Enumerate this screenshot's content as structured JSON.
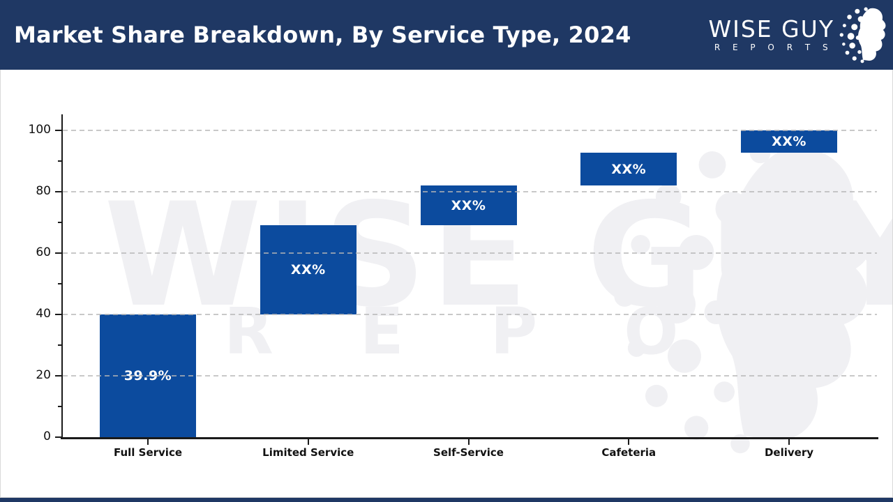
{
  "header": {
    "title": "Market Share Breakdown, By Service Type, 2024",
    "logo": {
      "line1": "WISE GUY",
      "line2": "R E P O R T S"
    }
  },
  "watermark": {
    "line1": "WISE GUY",
    "line2": "R E P O R T S"
  },
  "footer": {
    "note": ""
  },
  "colors": {
    "header_bg": "#1f3864",
    "footer_bg": "#1f3864",
    "bar": "#0c4b9e",
    "bar_label": "#ffffff",
    "gridline": "#d9d9d9",
    "axis": "#1a1a1a",
    "watermark": "#f0f0f3"
  },
  "chart_data": {
    "type": "bar",
    "subtype": "waterfall",
    "title": "Market Share Breakdown, By Service Type, 2024",
    "categories": [
      "Full Service",
      "Limited Service",
      "Self-Service",
      "Cafeteria",
      "Delivery"
    ],
    "segments": [
      {
        "label": "Full Service",
        "start": 0,
        "end": 39.9,
        "value_label": "39.9%"
      },
      {
        "label": "Limited Service",
        "start": 40.0,
        "end": 69.0,
        "value_label": "XX%"
      },
      {
        "label": "Self-Service",
        "start": 69.0,
        "end": 82.0,
        "value_label": "XX%"
      },
      {
        "label": "Cafeteria",
        "start": 82.0,
        "end": 92.7,
        "value_label": "XX%"
      },
      {
        "label": "Delivery",
        "start": 92.7,
        "end": 100.0,
        "value_label": "XX%"
      }
    ],
    "y_ticks": [
      0,
      20,
      40,
      60,
      80,
      100
    ],
    "y_minor_ticks": [
      10,
      30,
      50,
      70,
      90
    ],
    "ylim": [
      0,
      100
    ],
    "xlabel": "",
    "ylabel": "",
    "grid": "horizontal-dashed",
    "legend": "none"
  }
}
